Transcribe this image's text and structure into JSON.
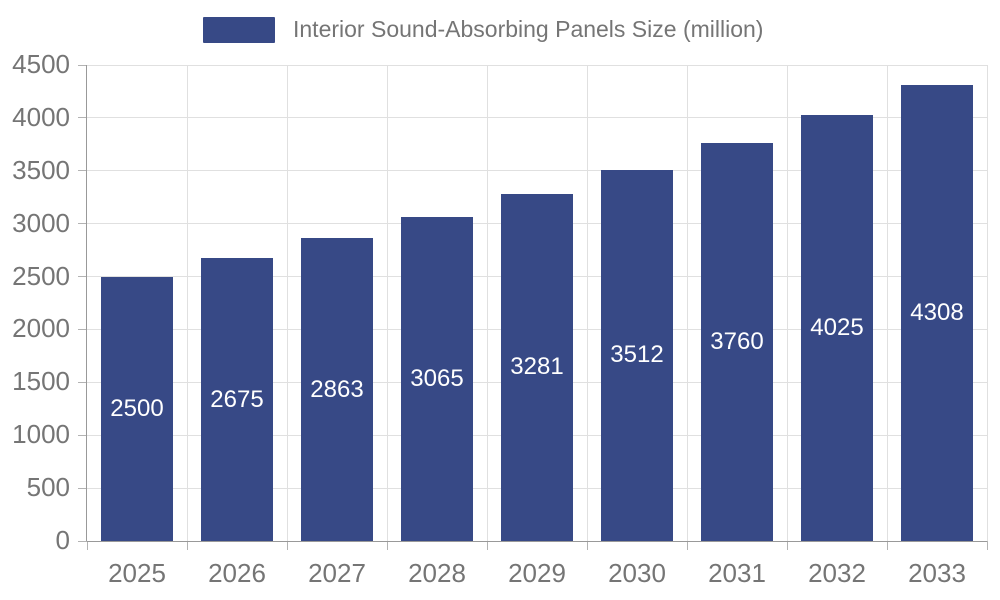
{
  "chart_data": {
    "type": "bar",
    "title": "Interior Sound-Absorbing Panels Size (million)",
    "categories": [
      "2025",
      "2026",
      "2027",
      "2028",
      "2029",
      "2030",
      "2031",
      "2032",
      "2033"
    ],
    "values": [
      2500,
      2675,
      2863,
      3065,
      3281,
      3512,
      3760,
      4025,
      4308
    ],
    "xlabel": "",
    "ylabel": "",
    "ylim": [
      0,
      4500
    ],
    "ytick_step": 500,
    "ytick_labels": [
      "0",
      "500",
      "1000",
      "1500",
      "2000",
      "2500",
      "3000",
      "3500",
      "4000",
      "4500"
    ],
    "grid": true,
    "legend_position": "top",
    "value_labels_inside": true
  },
  "legend": {
    "label": "Interior Sound-Absorbing Panels Size (million)"
  },
  "colors": {
    "bar": "#374986",
    "value_text": "#ffffff",
    "grid": "#e0e0e0",
    "axis": "#999999",
    "tick": "#b3b3b3",
    "text": "#757575",
    "background": "#ffffff"
  }
}
